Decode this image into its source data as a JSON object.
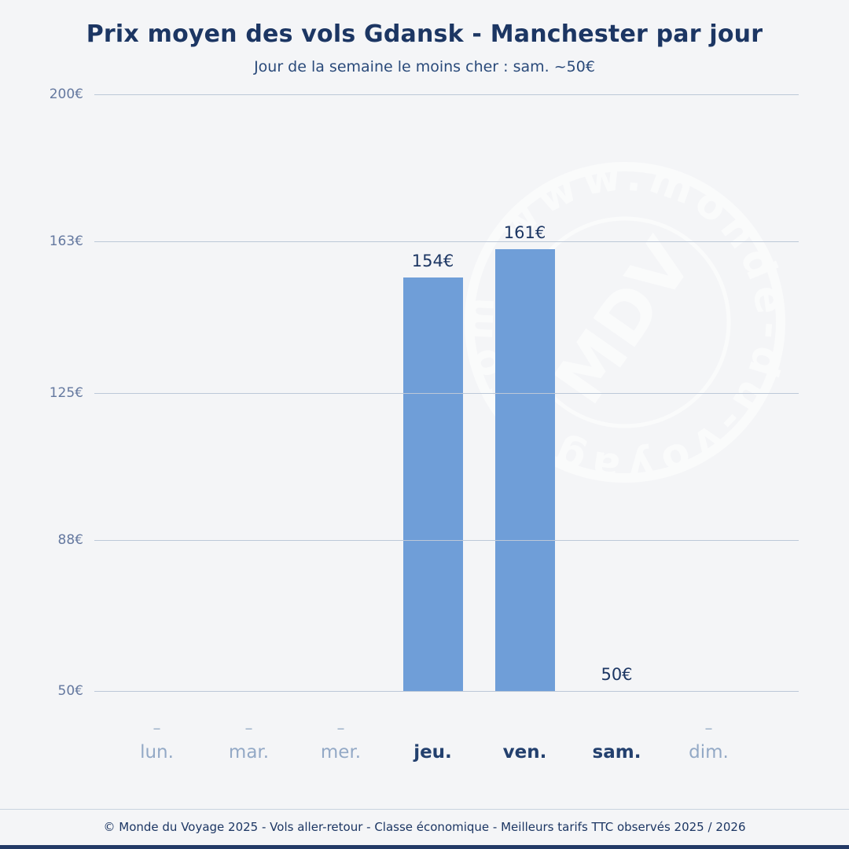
{
  "footer": {
    "text": "© Monde du Voyage 2025 - Vols aller-retour - Classe économique - Meilleurs tarifs TTC observés 2025 / 2026"
  },
  "watermark": {
    "text": "www.monde-du-voyage.com .",
    "initials": "MDV"
  },
  "colors": {
    "background": "#f4f5f7",
    "bar": "#6f9ed8",
    "title": "#1c3663",
    "gridline": "#bcc8d8",
    "axis_inactive": "#93a9c6",
    "axis_active": "#23406e"
  },
  "chart_data": {
    "type": "bar",
    "title": "Prix moyen des vols Gdansk - Manchester par jour",
    "subtitle": "Jour de la semaine le moins cher : sam. ~50€",
    "categories": [
      "lun.",
      "mar.",
      "mer.",
      "jeu.",
      "ven.",
      "sam.",
      "dim."
    ],
    "values": [
      null,
      null,
      null,
      154,
      161,
      50,
      null
    ],
    "value_labels": [
      "–",
      "–",
      "–",
      "154€",
      "161€",
      "50€",
      "–"
    ],
    "no_data_marker": "–",
    "yticks": [
      200,
      163,
      125,
      88,
      50
    ],
    "ytick_labels": [
      "200€",
      "163€",
      "125€",
      "88€",
      "50€"
    ],
    "ylim": [
      50,
      200
    ],
    "xlabel": "",
    "ylabel": "",
    "grid": true,
    "legend": false,
    "bar_color": "#6f9ed8"
  }
}
